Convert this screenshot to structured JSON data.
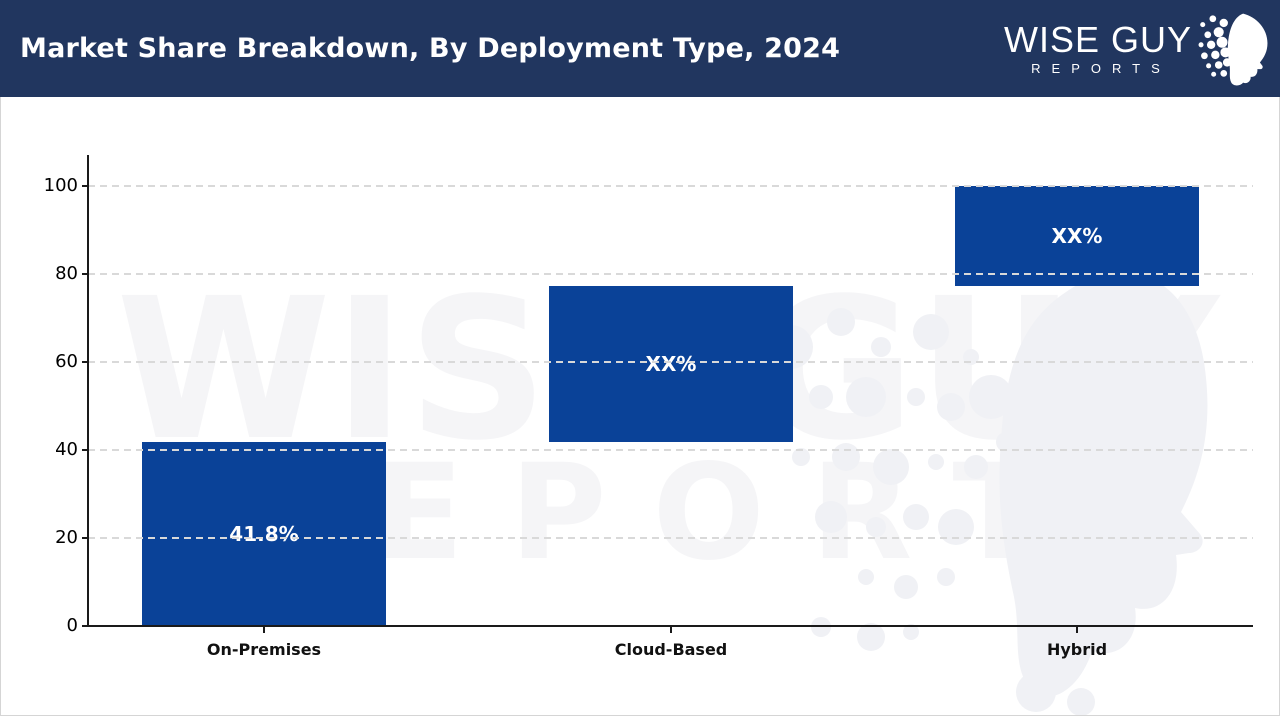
{
  "header": {
    "title": "Market Share Breakdown, By Deployment Type, 2024",
    "logo": {
      "name": "WISE GUY",
      "sub": "REPORTS"
    }
  },
  "watermark": {
    "line1": "WISE GUY",
    "line2": "REPORTS"
  },
  "chart_data": {
    "type": "bar",
    "subtype": "stacked-waterfall",
    "title": "Market Share Breakdown, By Deployment Type, 2024",
    "categories": [
      "On-Premises",
      "Cloud-Based",
      "Hybrid"
    ],
    "segments": [
      {
        "category": "On-Premises",
        "start": 0,
        "end": 41.8,
        "label": "41.8%"
      },
      {
        "category": "Cloud-Based",
        "start": 41.8,
        "end": 77.3,
        "label": "XX%",
        "value_estimate": 35.5
      },
      {
        "category": "Hybrid",
        "start": 77.3,
        "end": 100,
        "label": "XX%",
        "value_estimate": 22.7
      }
    ],
    "yticks": [
      0,
      20,
      40,
      60,
      80,
      100
    ],
    "ylim": [
      0,
      105
    ],
    "xlabel": "",
    "ylabel": "",
    "grid": "horizontal-dashed",
    "legend": null,
    "colors": {
      "bar": "#0A4298",
      "header_bg": "#21365F",
      "grid": "#D9D9D9",
      "axis": "#1A1A1A",
      "bar_label": "#FFFFFF",
      "watermark": "rgba(15,25,70,0.045)"
    }
  }
}
